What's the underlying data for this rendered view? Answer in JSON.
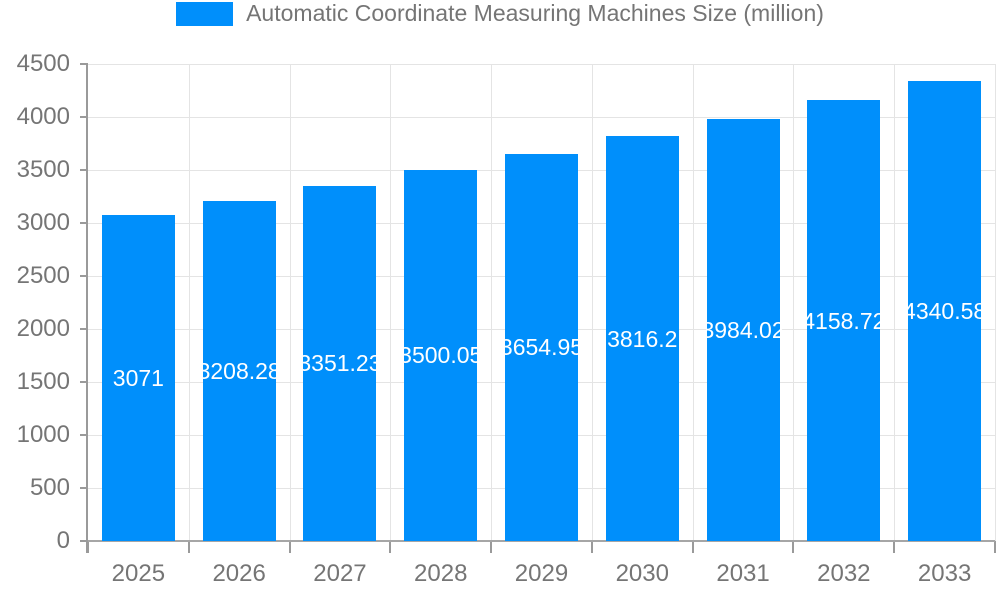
{
  "legend": {
    "swatch_color": "#008FFB"
  },
  "chart_data": {
    "type": "bar",
    "title": "Automatic Coordinate Measuring Machines Size (million)",
    "categories": [
      "2025",
      "2026",
      "2027",
      "2028",
      "2029",
      "2030",
      "2031",
      "2032",
      "2033"
    ],
    "values": [
      3071,
      3208.28,
      3351.23,
      3500.05,
      3654.95,
      3816.2,
      3984.02,
      4158.72,
      4340.58
    ],
    "bar_labels": [
      "3071",
      "3208.28",
      "3351.23",
      "3500.05",
      "3654.95",
      "3816.2",
      "3984.02",
      "4158.72",
      "4340.58"
    ],
    "xlabel": "",
    "ylabel": "",
    "ylim": [
      0,
      4500
    ],
    "ytick_step": 500,
    "yticks": [
      0,
      500,
      1000,
      1500,
      2000,
      2500,
      3000,
      3500,
      4000,
      4500
    ],
    "grid": true,
    "legend_position": "top",
    "bar_color": "#008FFB",
    "value_label_color": "#ffffff",
    "axis_text_color": "#757575",
    "grid_color": "#e4e4e4",
    "axis_line_color": "#9a9a9a"
  }
}
